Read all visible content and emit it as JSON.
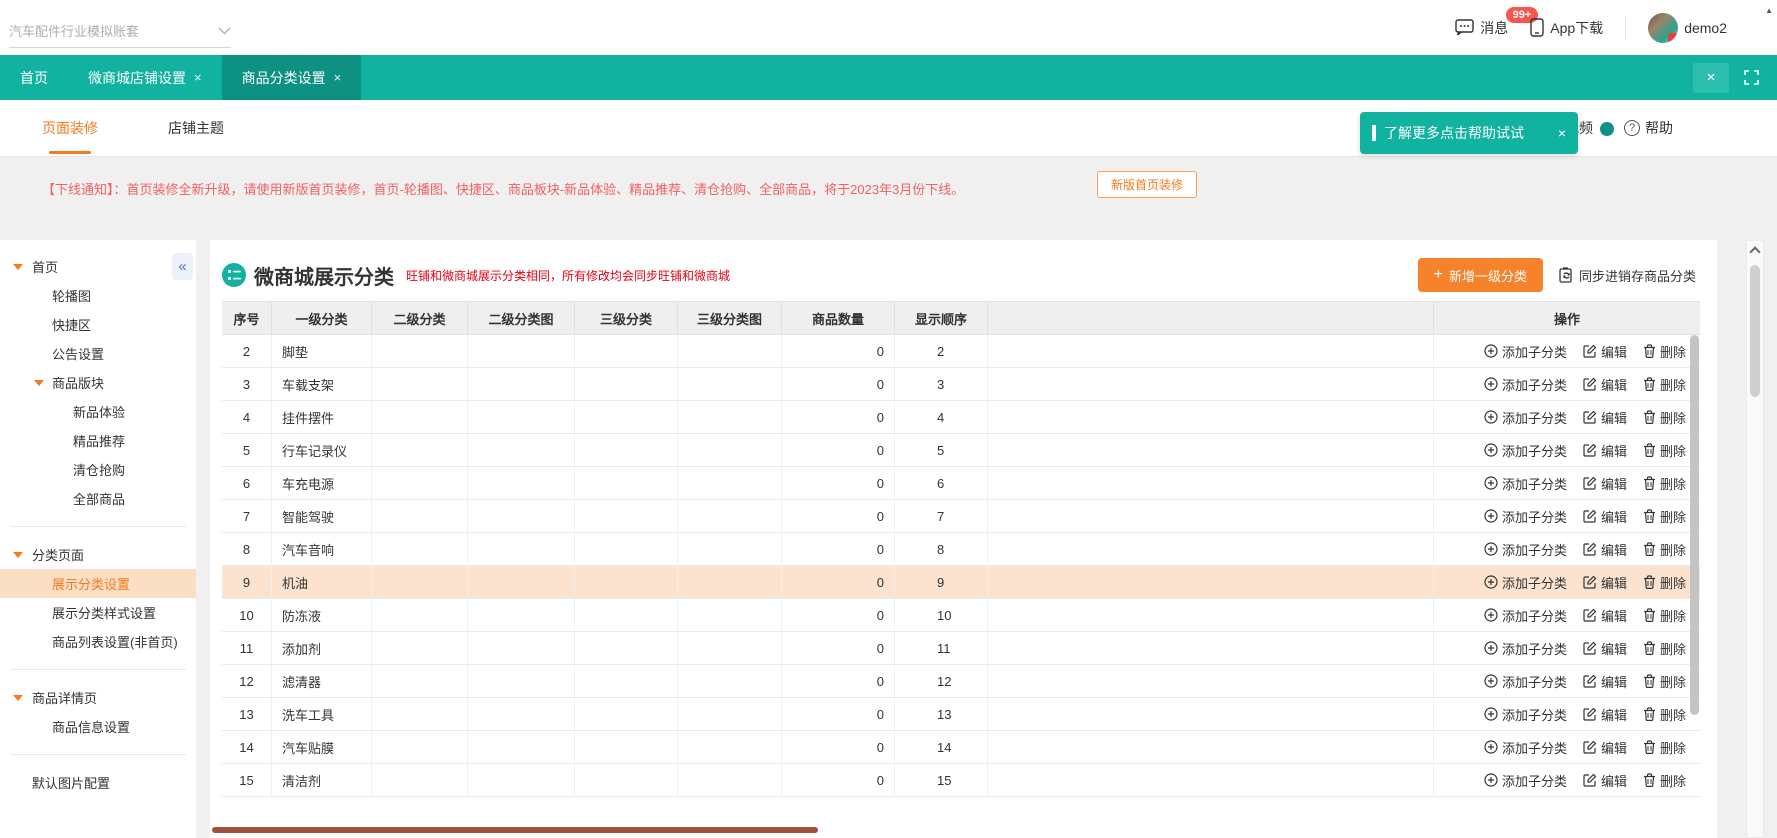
{
  "glyphs": {
    "close": "×",
    "plus": "+",
    "collapse": "«"
  },
  "topbar": {
    "account_select_value": "汽车配件行业模拟账套",
    "messages_label": "消息",
    "messages_badge": "99+",
    "app_download_label": "App下载",
    "username": "demo2"
  },
  "tabbar": {
    "tabs": [
      {
        "label": "首页"
      },
      {
        "label": "微商城店铺设置"
      },
      {
        "label": "商品分类设置"
      }
    ]
  },
  "subnav": {
    "tabs": [
      {
        "label": "页面装修"
      },
      {
        "label": "店铺主题"
      }
    ],
    "tooltip_text": "了解更多点击帮助试试",
    "video_label": "视频",
    "help_label": "帮助"
  },
  "notice": {
    "text": "【下线通知】：首页装修全新升级，请使用新版首页装修，首页-轮播图、快捷区、商品板块-新品体验、精品推荐、清仓抢购、全部商品，将于2023年3月份下线。",
    "button_label": "新版首页装修"
  },
  "sidebar": {
    "items": [
      {
        "label": "首页",
        "level": 1,
        "arrow": true
      },
      {
        "label": "轮播图",
        "level": 2
      },
      {
        "label": "快捷区",
        "level": 2
      },
      {
        "label": "公告设置",
        "level": 2
      },
      {
        "label": "商品版块",
        "level": 2,
        "arrow": true
      },
      {
        "label": "新品体验",
        "level": 3
      },
      {
        "label": "精品推荐",
        "level": 3
      },
      {
        "label": "清仓抢购",
        "level": 3
      },
      {
        "label": "全部商品",
        "level": 3
      },
      {
        "divider": true
      },
      {
        "label": "分类页面",
        "level": 1,
        "arrow": true
      },
      {
        "label": "展示分类设置",
        "level": 2,
        "selected": true
      },
      {
        "label": "展示分类样式设置",
        "level": 2
      },
      {
        "label": "商品列表设置(非首页)",
        "level": 2
      },
      {
        "divider": true
      },
      {
        "label": "商品详情页",
        "level": 1,
        "arrow": true
      },
      {
        "label": "商品信息设置",
        "level": 2
      },
      {
        "divider": true
      },
      {
        "label": "默认图片配置",
        "level": 1
      }
    ]
  },
  "main": {
    "title": "微商城展示分类",
    "note": "旺铺和微商城展示分类相同，所有修改均会同步旺铺和微商城",
    "add_button_label": "新增一级分类",
    "sync_button_label": "同步进销存商品分类",
    "table": {
      "columns": [
        "序号",
        "一级分类",
        "二级分类",
        "二级分类图",
        "三级分类",
        "三级分类图",
        "商品数量",
        "显示顺序",
        "操作"
      ],
      "row_actions": {
        "add_child": "添加子分类",
        "edit": "编辑",
        "delete": "删除"
      },
      "rows": [
        {
          "seq": "2",
          "name": "脚垫",
          "count": "0",
          "order": "2"
        },
        {
          "seq": "3",
          "name": "车载支架",
          "count": "0",
          "order": "3"
        },
        {
          "seq": "4",
          "name": "挂件摆件",
          "count": "0",
          "order": "4"
        },
        {
          "seq": "5",
          "name": "行车记录仪",
          "count": "0",
          "order": "5"
        },
        {
          "seq": "6",
          "name": "车充电源",
          "count": "0",
          "order": "6"
        },
        {
          "seq": "7",
          "name": "智能驾驶",
          "count": "0",
          "order": "7"
        },
        {
          "seq": "8",
          "name": "汽车音响",
          "count": "0",
          "order": "8"
        },
        {
          "seq": "9",
          "name": "机油",
          "count": "0",
          "order": "9",
          "highlight": true
        },
        {
          "seq": "10",
          "name": "防冻液",
          "count": "0",
          "order": "10"
        },
        {
          "seq": "11",
          "name": "添加剂",
          "count": "0",
          "order": "11"
        },
        {
          "seq": "12",
          "name": "滤清器",
          "count": "0",
          "order": "12"
        },
        {
          "seq": "13",
          "name": "洗车工具",
          "count": "0",
          "order": "13"
        },
        {
          "seq": "14",
          "name": "汽车贴膜",
          "count": "0",
          "order": "14"
        },
        {
          "seq": "15",
          "name": "清洁剂",
          "count": "0",
          "order": "15"
        }
      ]
    }
  }
}
